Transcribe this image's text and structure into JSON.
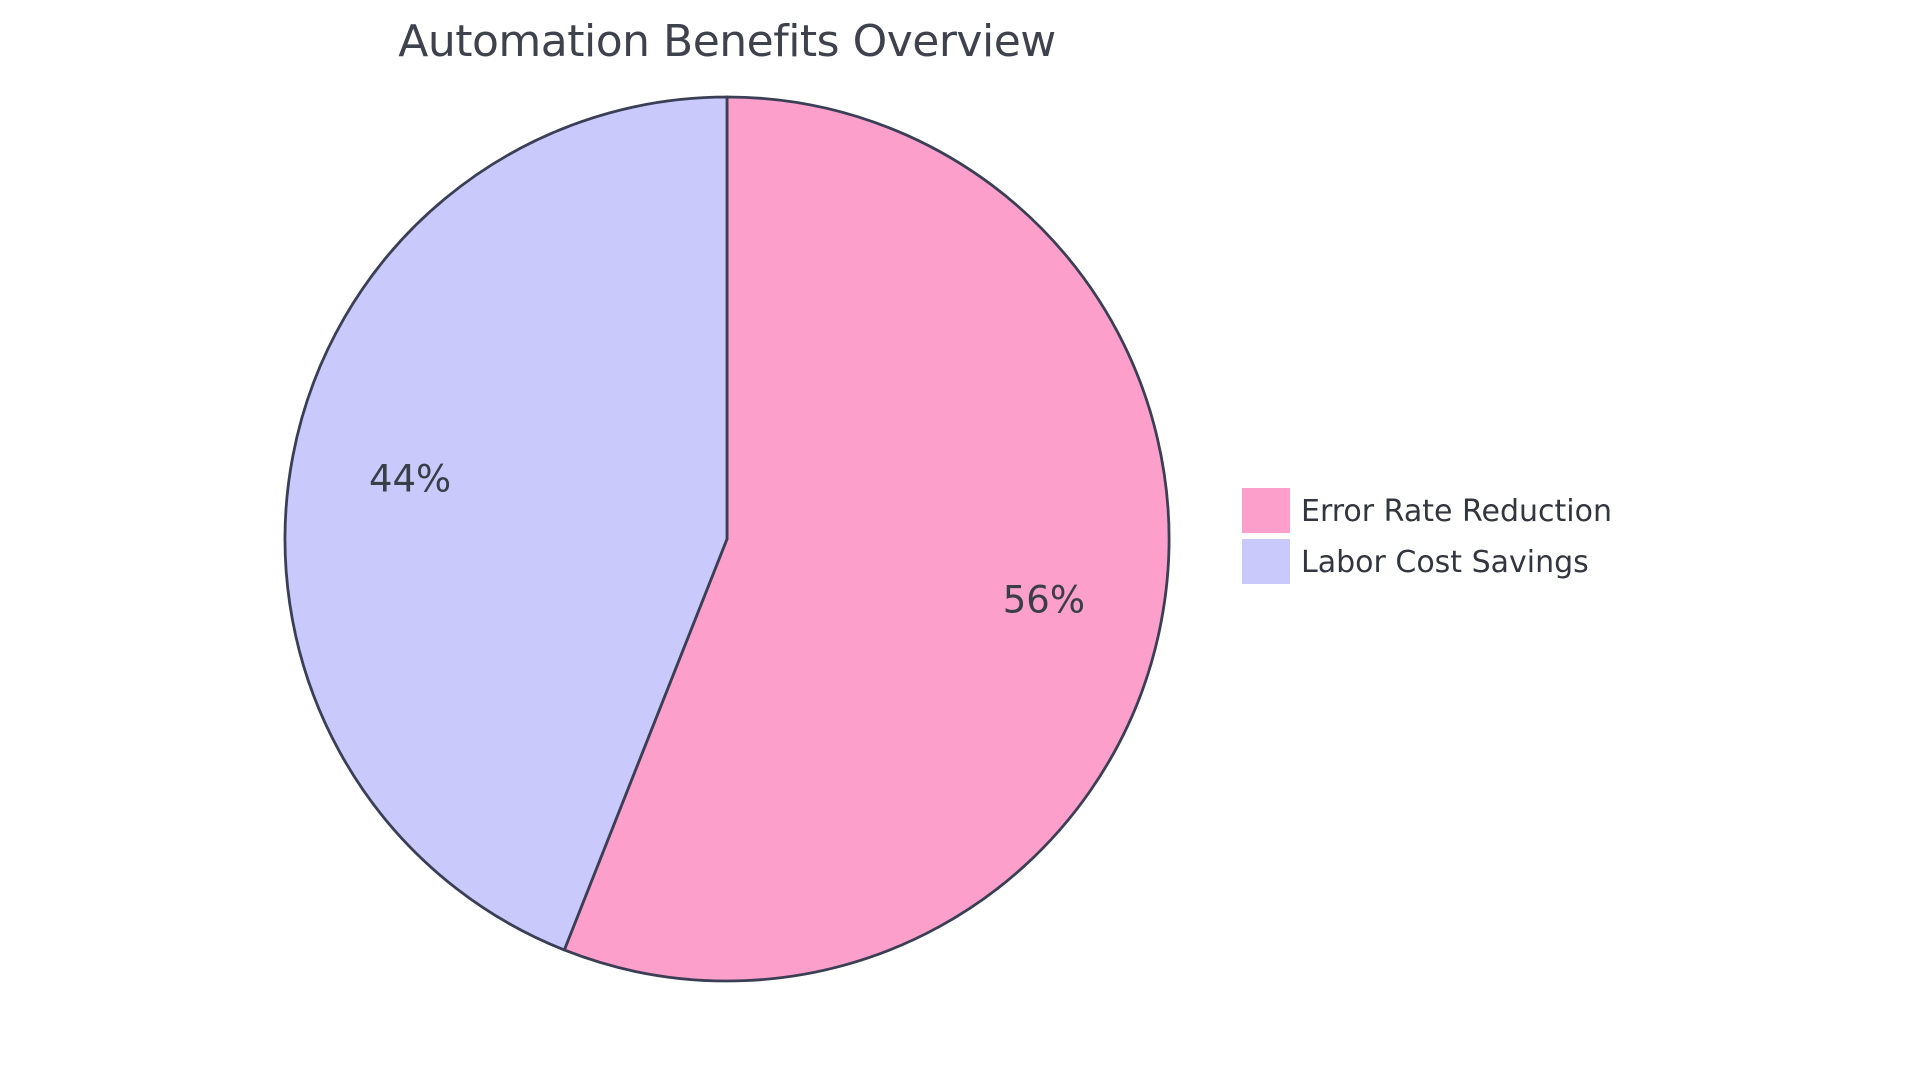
{
  "chart_data": {
    "type": "pie",
    "title": "Automation Benefits Overview",
    "slices": [
      {
        "label": "Error Rate Reduction",
        "value": 56,
        "pct_label": "56%",
        "color": "#FC9FCB"
      },
      {
        "label": "Labor Cost Savings",
        "value": 44,
        "pct_label": "44%",
        "color": "#C9CAFB"
      }
    ],
    "start_angle": "12-oclock",
    "direction": "clockwise",
    "legend_position": "right",
    "stroke_color": "#3B3F55",
    "title_color": "#3E424D",
    "label_color": "#3A3E48",
    "legend_text_color": "#33363F",
    "background_color": "#FFFFFF"
  }
}
